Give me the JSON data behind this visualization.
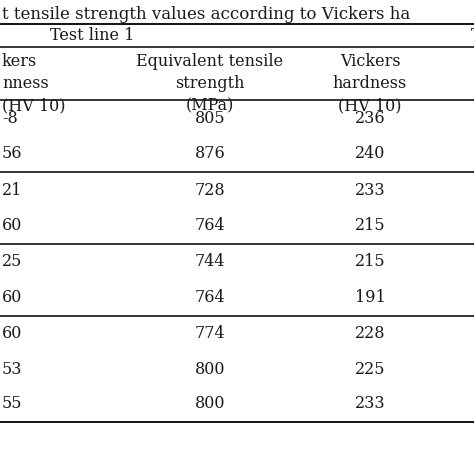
{
  "title": "t tensile strength values according to Vickers ha",
  "section_header": "Test line 1",
  "col1_header": [
    "kers",
    "ness",
    " 10)"
  ],
  "col2_header": [
    "Equivalent tensile",
    "strength",
    "(MPa)"
  ],
  "col3_header": [
    "Vickers",
    "hardness",
    "(HV 10)"
  ],
  "col1_vals": [
    "-8",
    "56",
    "21",
    "60",
    "25",
    "60",
    "60",
    "53",
    "55"
  ],
  "col2_data": [
    805,
    876,
    728,
    764,
    744,
    764,
    774,
    800,
    800
  ],
  "col3_data": [
    236,
    240,
    233,
    215,
    215,
    191,
    228,
    225,
    233
  ],
  "bg_color": "#ffffff",
  "text_color": "#1a1a1a",
  "font_size": 11.5
}
